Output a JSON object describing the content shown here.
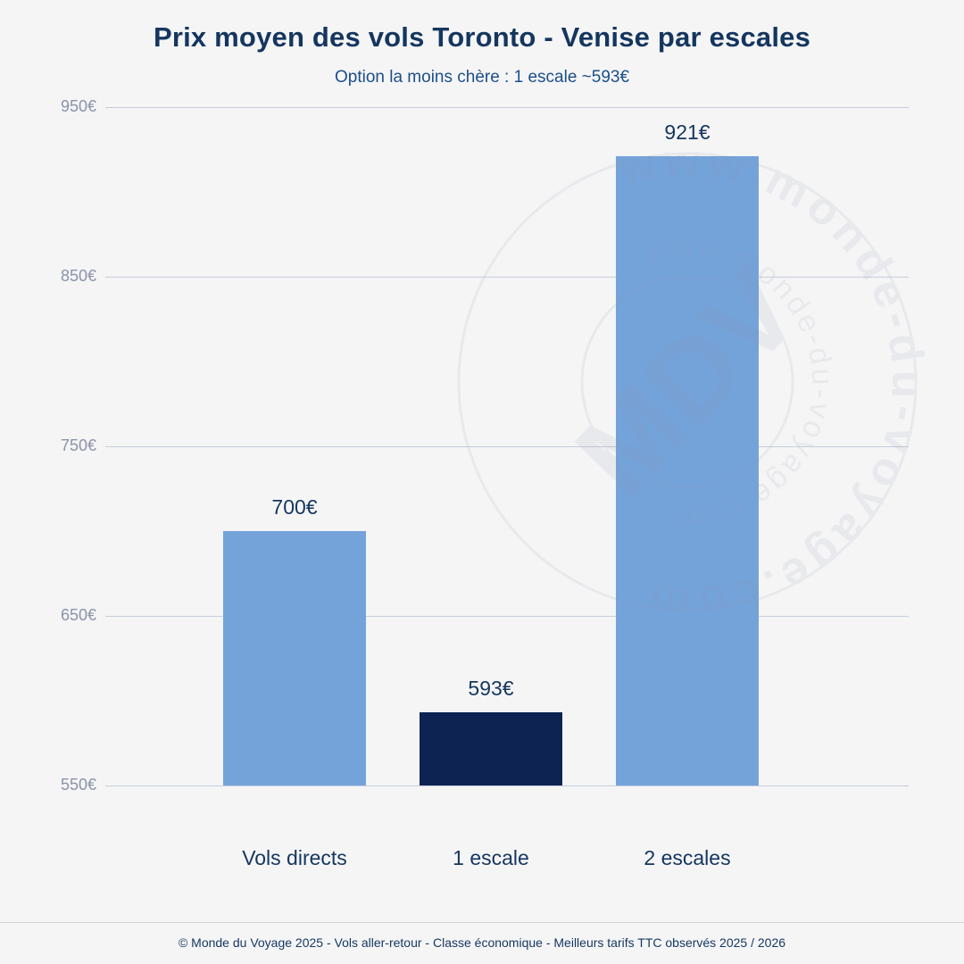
{
  "chart_data": {
    "type": "bar",
    "title": "Prix moyen des vols Toronto - Venise par escales",
    "subtitle": "Option la moins chère : 1 escale ~593€",
    "categories": [
      "Vols directs",
      "1 escale",
      "2 escales"
    ],
    "values": [
      700,
      593,
      921
    ],
    "value_labels": [
      "700€",
      "593€",
      "921€"
    ],
    "bar_colors": [
      "#74a3da",
      "#0d2452",
      "#74a3da"
    ],
    "xlabel": "",
    "ylabel": "",
    "ylim": [
      550,
      950
    ],
    "ytick_step": 100,
    "ytick_labels": [
      "550€",
      "650€",
      "750€",
      "850€",
      "950€"
    ],
    "grid": true,
    "legend": "none",
    "currency": "€"
  },
  "watermark": {
    "ring_text": "www.monde-du-voyage.com",
    "center_text": "MDV"
  },
  "footer": {
    "text": "© Monde du Voyage 2025 - Vols aller-retour - Classe économique - Meilleurs tarifs TTC observés 2025 / 2026"
  },
  "colors": {
    "background": "#f5f5f6",
    "title": "#14365f",
    "subtitle": "#1b4f8a",
    "axis_label": "#8a93a8",
    "gridline": "#c6cddc",
    "bar_light_blue": "#74a3da",
    "bar_dark_navy": "#0d2452"
  }
}
